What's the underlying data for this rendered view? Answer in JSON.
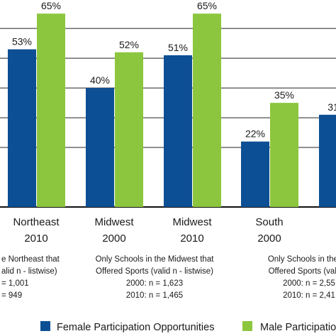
{
  "chart_data": {
    "type": "bar",
    "ylim": [
      0,
      80
    ],
    "gridlines": [
      20,
      30,
      40,
      50,
      60,
      70
    ],
    "groups": [
      {
        "label_line1": "Northeast",
        "label_line2": "2010",
        "female": 53,
        "male": 65,
        "female_label": "53%",
        "male_label": "65%"
      },
      {
        "label_line1": "Midwest",
        "label_line2": "2000",
        "female": 40,
        "male": 52,
        "female_label": "40%",
        "male_label": "52%"
      },
      {
        "label_line1": "Midwest",
        "label_line2": "2010",
        "female": 51,
        "male": 65,
        "female_label": "51%",
        "male_label": "65%"
      },
      {
        "label_line1": "South",
        "label_line2": "2000",
        "female": 22,
        "male": 35,
        "female_label": "22%",
        "male_label": "35%"
      },
      {
        "label_line1": "",
        "label_line2": "",
        "female": 31,
        "male": null,
        "female_label": "31",
        "male_label": ""
      }
    ],
    "notes": [
      {
        "lines": [
          "e Northeast that",
          "alid n - listwise)",
          "= 1,001",
          "= 949"
        ]
      },
      {
        "lines": [
          "Only Schools in the Midwest that",
          "Offered Sports (valid n - listwise)",
          "2000: n = 1,623",
          "2010: n = 1,465"
        ]
      },
      {
        "lines": [
          "Only Schools in the Se",
          "Offered Sports (valid n",
          "2000: n = 2,55",
          "2010: n = 2,41"
        ]
      }
    ],
    "series": [
      {
        "name": "Female Participation Opportunities",
        "color": "#0d4f94"
      },
      {
        "name": "Male Participatio",
        "color": "#8cc63e"
      }
    ]
  }
}
